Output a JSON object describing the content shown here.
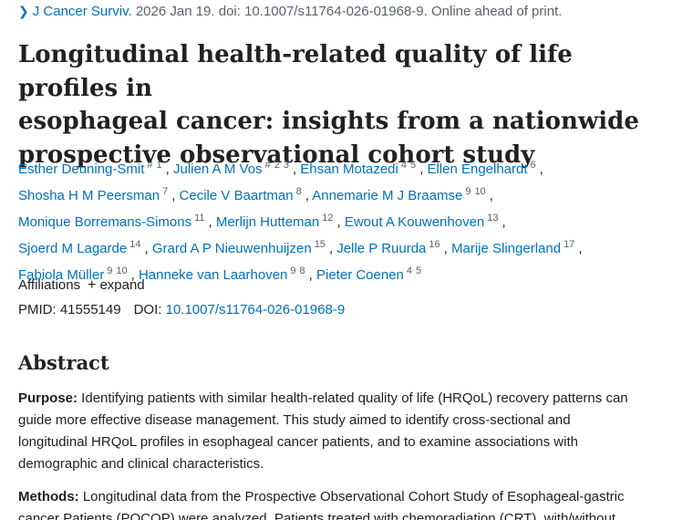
{
  "citation": {
    "journal": "J Cancer Surviv.",
    "details": "2026 Jan 19. doi: 10.1007/s11764-026-01968-9. Online ahead of print."
  },
  "title_lines": [
    "Longitudinal health-related quality of life profiles in",
    "esophageal cancer: insights from a nationwide",
    "prospective observational cohort study"
  ],
  "authors": [
    {
      "name": "Esther Deuning-Smit",
      "sup": [
        "#",
        "1"
      ]
    },
    {
      "name": "Julien A M Vos",
      "sup": [
        "#",
        "2",
        "3"
      ]
    },
    {
      "name": "Ehsan Motazedi",
      "sup": [
        "4",
        "5"
      ]
    },
    {
      "name": "Ellen Engelhardt",
      "sup": [
        "6"
      ]
    },
    {
      "name": "Shosha H M Peersman",
      "sup": [
        "7"
      ]
    },
    {
      "name": "Cecile V Baartman",
      "sup": [
        "8"
      ]
    },
    {
      "name": "Annemarie M J Braamse",
      "sup": [
        "9",
        "10"
      ]
    },
    {
      "name": "Monique Borremans-Simons",
      "sup": [
        "11"
      ]
    },
    {
      "name": "Merlijn Hutteman",
      "sup": [
        "12"
      ]
    },
    {
      "name": "Ewout A Kouwenhoven",
      "sup": [
        "13"
      ]
    },
    {
      "name": "Sjoerd M Lagarde",
      "sup": [
        "14"
      ]
    },
    {
      "name": "Grard A P Nieuwenhuijzen",
      "sup": [
        "15"
      ]
    },
    {
      "name": "Jelle P Ruurda",
      "sup": [
        "16"
      ]
    },
    {
      "name": "Marije Slingerland",
      "sup": [
        "17"
      ]
    },
    {
      "name": "Fabiola Müller",
      "sup": [
        "9",
        "10"
      ]
    },
    {
      "name": "Hanneke van Laarhoven",
      "sup": [
        "9",
        "8"
      ]
    },
    {
      "name": "Pieter Coenen",
      "sup": [
        "4",
        "5"
      ]
    }
  ],
  "affiliations": {
    "label": "Affiliations",
    "toggle": "expand"
  },
  "ids": {
    "pmid_label": "PMID:",
    "pmid": "41555149",
    "doi_label": "DOI:",
    "doi": "10.1007/s11764-026-01968-9"
  },
  "abstract": {
    "heading": "Abstract",
    "purpose_label": "Purpose:",
    "purpose_lines": [
      " Identifying patients with similar health-related quality of life (HRQoL) recovery patterns can",
      "guide more effective disease management. This study aimed to identify cross-sectional and",
      "longitudinal HRQoL profiles in esophageal cancer patients, and to examine associations with",
      "demographic and clinical characteristics."
    ],
    "methods_label": "Methods:",
    "methods_lines": [
      " Longitudinal data from the Prospective Observational Cohort Study of Esophageal-gastric",
      "cancer Patients (POCOP) were analyzed. Patients treated with chemoradiation (CRT), with/without"
    ]
  }
}
